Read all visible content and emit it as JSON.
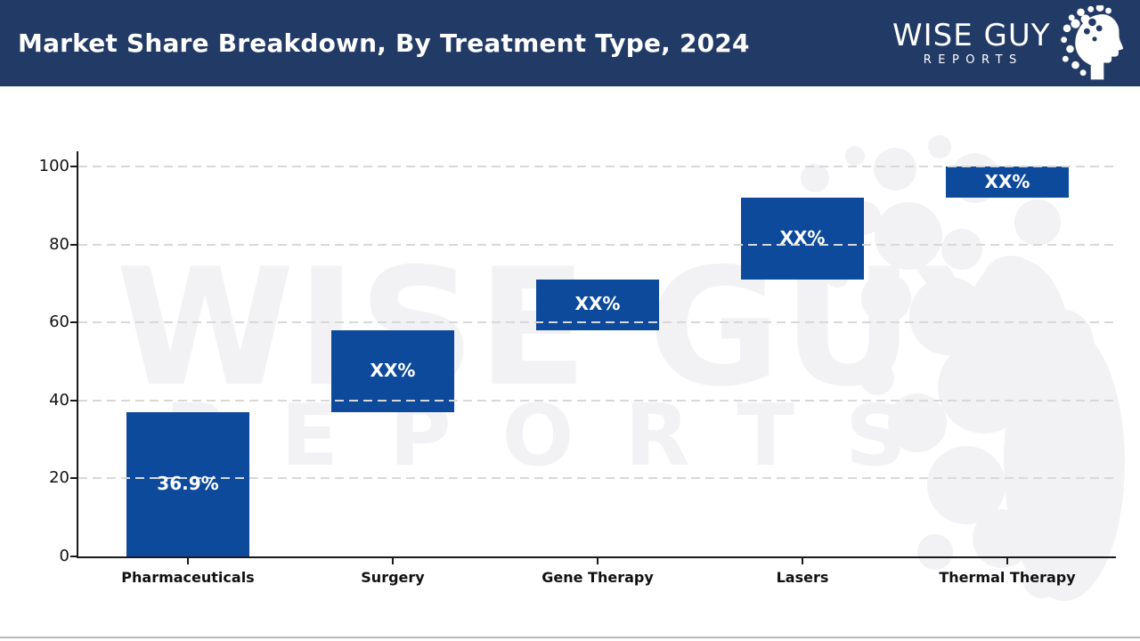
{
  "header": {
    "title": "Market Share Breakdown, By Treatment Type, 2024",
    "logo": {
      "name": "WISE GUY",
      "sub": "REPORTS"
    }
  },
  "watermark": {
    "line1": "WISE GUY",
    "line2": "REPORTS"
  },
  "chart_data": {
    "type": "bar",
    "subtype": "waterfall",
    "title": "Market Share Breakdown, By Treatment Type, 2024",
    "categories": [
      "Pharmaceuticals",
      "Surgery",
      "Gene Therapy",
      "Lasers",
      "Thermal Therapy"
    ],
    "starts": [
      0,
      36.9,
      58,
      71,
      92
    ],
    "values": [
      36.9,
      21.1,
      13,
      21,
      8
    ],
    "cumulative": [
      36.9,
      58,
      71,
      92,
      100
    ],
    "bar_labels": [
      "36.9%",
      "XX%",
      "XX%",
      "XX%",
      "XX%"
    ],
    "xlabel": "",
    "ylabel": "",
    "ylim": [
      0,
      104
    ],
    "yticks": [
      0,
      20,
      40,
      60,
      80,
      100
    ],
    "grid": "horizontal-dashed-over-bars",
    "legend": "none",
    "colors": {
      "bar": "#0d4a9c",
      "bar_label": "#ffffff",
      "header_bg": "#223a66",
      "gridline": "#d8d8d8",
      "axis": "#1a1a1a",
      "watermark": "#f2f2f5"
    }
  }
}
